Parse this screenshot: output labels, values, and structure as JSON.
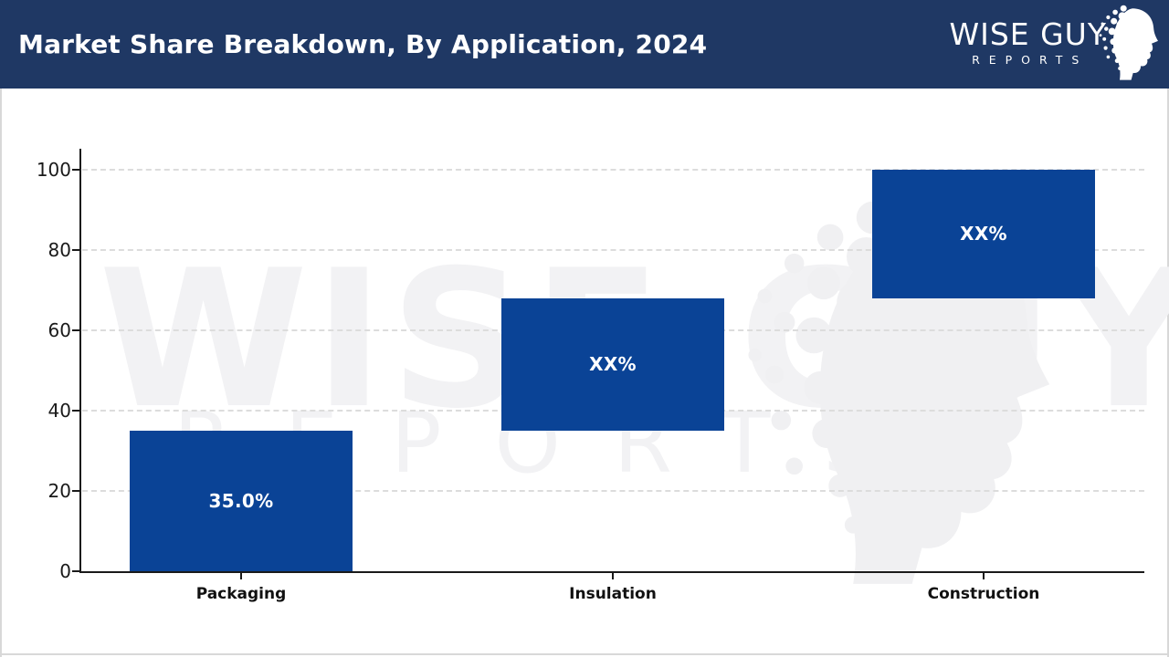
{
  "header": {
    "title": "Market Share Breakdown, By Application, 2024",
    "bg_color": "#1f3864",
    "logo": {
      "name": "WISE GUY",
      "subtitle": "REPORTS"
    }
  },
  "watermark": {
    "name": "WISE GUY",
    "subtitle": "REPORTS"
  },
  "chart_data": {
    "type": "bar",
    "subtype": "waterfall",
    "title": "Market Share Breakdown, By Application, 2024",
    "categories": [
      "Packaging",
      "Insulation",
      "Construction"
    ],
    "series": [
      {
        "name": "Market Share",
        "segments": [
          {
            "category": "Packaging",
            "start": 0,
            "end": 35,
            "label": "35.0%"
          },
          {
            "category": "Insulation",
            "start": 35,
            "end": 68,
            "label": "XX%"
          },
          {
            "category": "Construction",
            "start": 68,
            "end": 100,
            "label": "XX%"
          }
        ]
      }
    ],
    "xlabel": "",
    "ylabel": "",
    "ylim": [
      0,
      100
    ],
    "yticks": [
      0,
      20,
      40,
      60,
      80,
      100
    ],
    "grid": "horizontal-dashed",
    "legend": "none",
    "bar_color": "#0a4396",
    "bar_label_color": "#ffffff",
    "axis_color": "#1a1a1a",
    "grid_color": "#dcdcdc"
  }
}
